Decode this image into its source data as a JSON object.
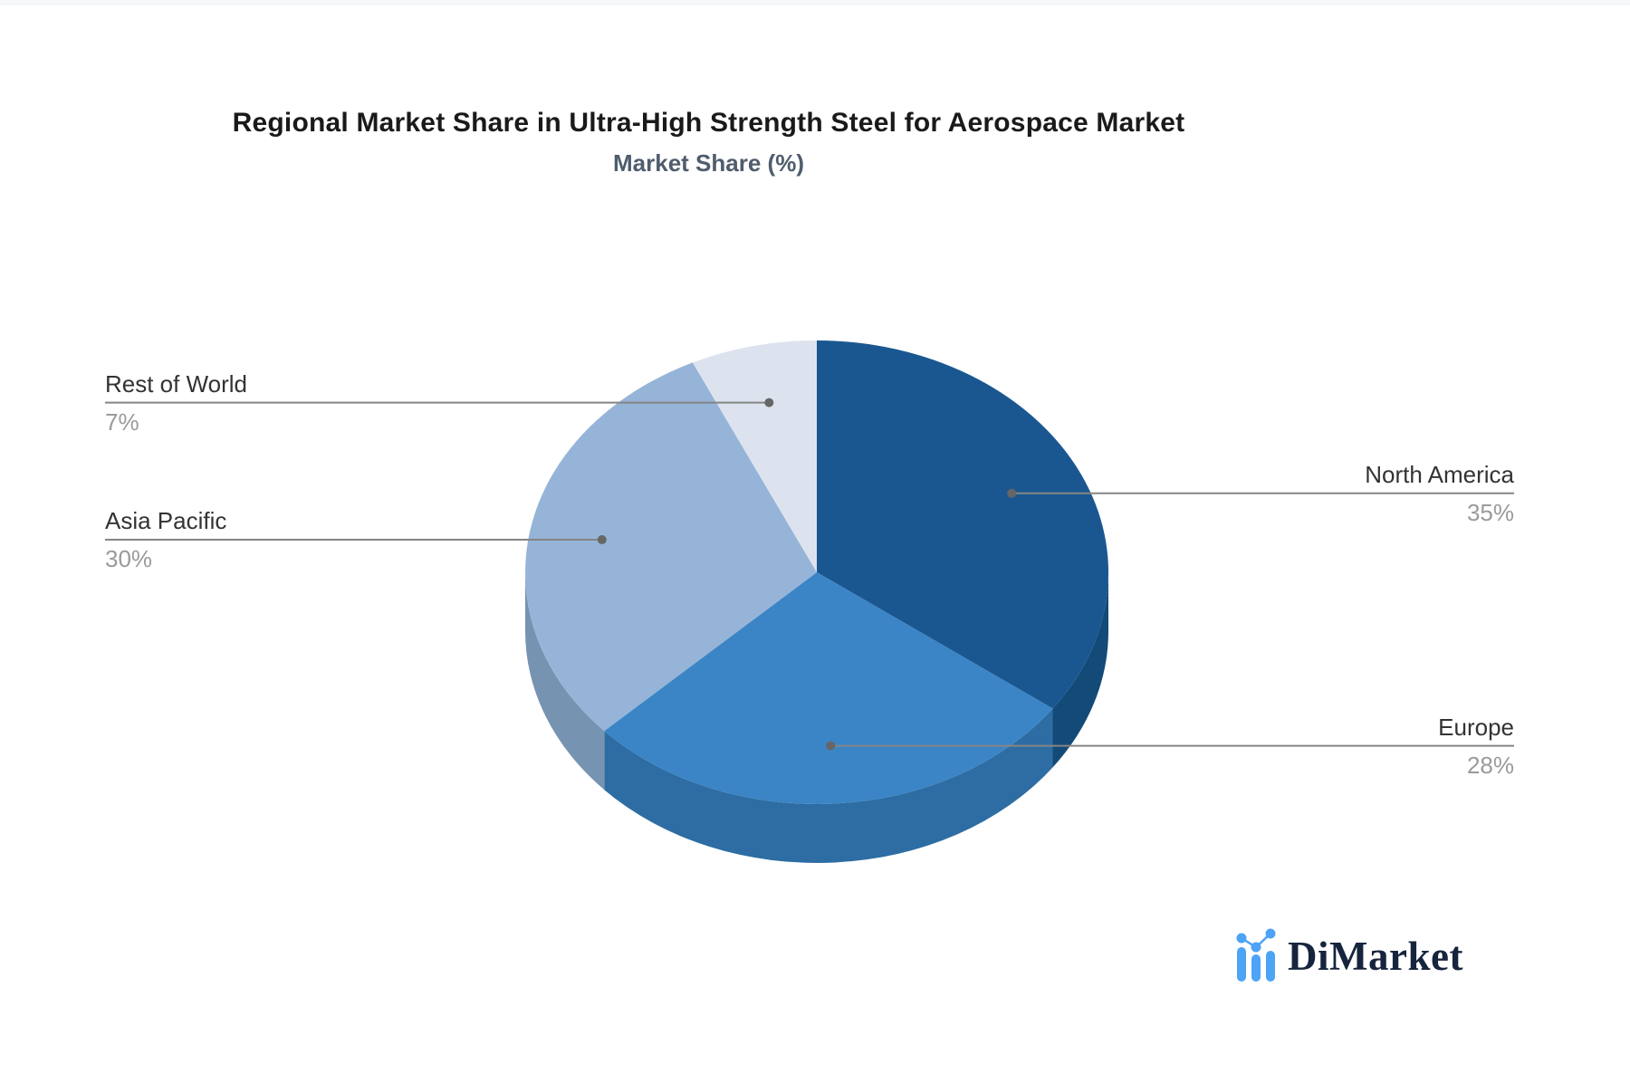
{
  "header": {
    "title": "Regional Market Share in Ultra-High Strength Steel for Aerospace Market",
    "subtitle": "Market Share (%)"
  },
  "chart_data": {
    "type": "pie",
    "style_3d": true,
    "title": "Regional Market Share in Ultra-High Strength Steel for Aerospace Market",
    "subtitle": "Market Share (%)",
    "unit": "%",
    "start_angle_deg": 0,
    "direction": "clockwise",
    "labels": "callout-leader-lines",
    "legend": "none",
    "series": [
      {
        "name": "North America",
        "value": 35,
        "value_label": "35%",
        "color": "#1a5791",
        "side_color": "#144a78",
        "label_side": "right"
      },
      {
        "name": "Europe",
        "value": 28,
        "value_label": "28%",
        "color": "#3b85c6",
        "side_color": "#2e6da3",
        "label_side": "right"
      },
      {
        "name": "Asia Pacific",
        "value": 30,
        "value_label": "30%",
        "color": "#96b4d8",
        "side_color": "#7793b2",
        "label_side": "left"
      },
      {
        "name": "Rest of World",
        "value": 7,
        "value_label": "7%",
        "color": "#dde3ee",
        "side_color": "#b9c6da",
        "label_side": "left"
      }
    ],
    "palette": {
      "leader_line": "#858585",
      "anchor_dot": "#666666",
      "name_text": "#333333",
      "value_text": "#9a9a9a",
      "title_text": "#1a1a1a",
      "subtitle_text": "#4f5d6d"
    }
  },
  "branding": {
    "logo_text": "DiMarket",
    "icon": "bar-chart-icon",
    "icon_color": "#4da3f5",
    "text_color": "#16243d"
  }
}
